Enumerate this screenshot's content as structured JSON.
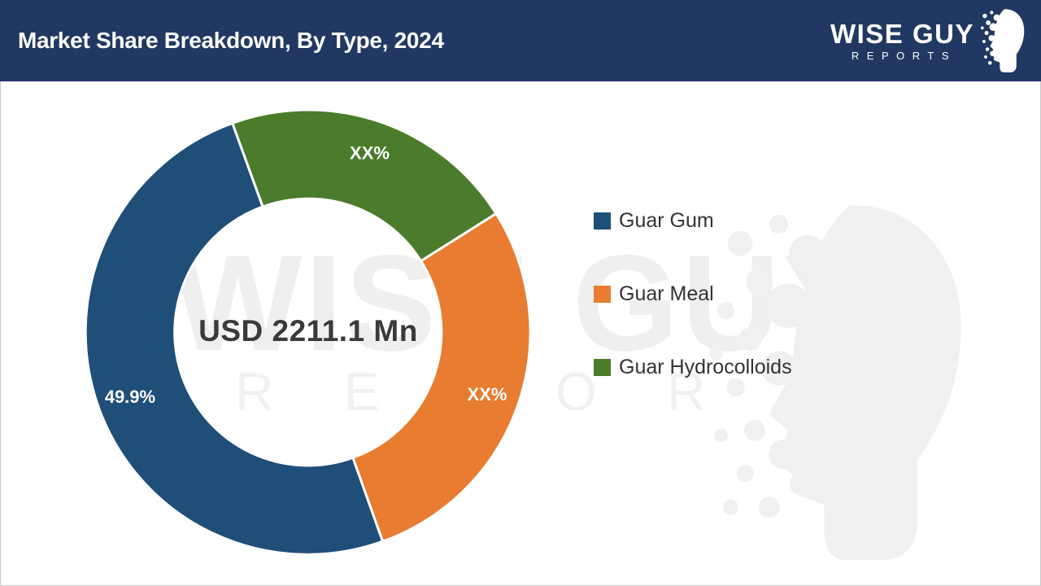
{
  "header": {
    "title": "Market Share Breakdown, By Type, 2024",
    "bg_color": "#213862",
    "logo": {
      "line1": "WISE GUY",
      "line2": "REPORTS"
    }
  },
  "watermark": {
    "line1": "WISE GUY",
    "line2": "REPORTS"
  },
  "chart_data": {
    "type": "pie",
    "subtype": "donut",
    "title": "Market Share Breakdown, By Type, 2024",
    "center_label": "USD 2211.1 Mn",
    "donut_hole_ratio": 0.6,
    "start_angle_deg": 160.4,
    "clockwise": true,
    "slices": [
      {
        "name": "Guar Gum",
        "label": "49.9%",
        "value_pct": 49.9,
        "color": "#1F4E79"
      },
      {
        "name": "Guar Hydrocolloids",
        "label": "XX%",
        "value_pct": 21.6,
        "color": "#4A7C2C"
      },
      {
        "name": "Guar Meal",
        "label": "XX%",
        "value_pct": 28.5,
        "color": "#E87C30"
      }
    ],
    "legend": [
      {
        "name": "Guar Gum",
        "color": "#1F4E79"
      },
      {
        "name": "Guar Meal",
        "color": "#E87C30"
      },
      {
        "name": "Guar Hydrocolloids",
        "color": "#4A7C2C"
      }
    ],
    "legend_position": "right",
    "label_color": "#ffffff"
  }
}
